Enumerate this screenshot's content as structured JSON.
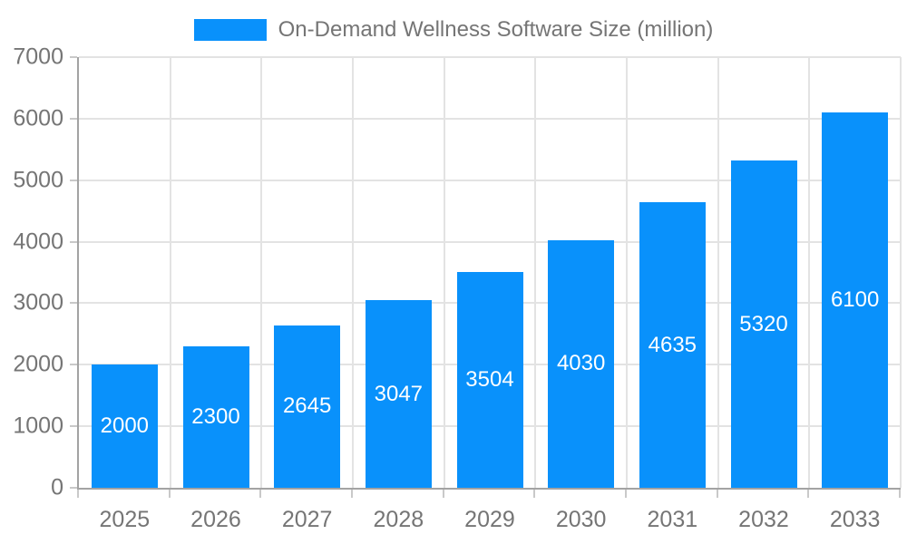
{
  "legend": {
    "label": "On-Demand Wellness Software Size (million)"
  },
  "chart_data": {
    "type": "bar",
    "title": "On-Demand Wellness Software Size (million)",
    "series_name": "On-Demand Wellness Software Size (million)",
    "categories": [
      "2025",
      "2026",
      "2027",
      "2028",
      "2029",
      "2030",
      "2031",
      "2032",
      "2033"
    ],
    "values": [
      2000,
      2300,
      2645,
      3047,
      3504,
      4030,
      4635,
      5320,
      6100
    ],
    "xlabel": "",
    "ylabel": "",
    "ylim": [
      0,
      7000
    ],
    "y_tick_step": 1000,
    "y_ticks": [
      0,
      1000,
      2000,
      3000,
      4000,
      5000,
      6000,
      7000
    ],
    "grid": true,
    "legend_position": "top",
    "bar_color": "#0991fb",
    "value_label_color": "#ffffff",
    "grid_color": "#e3e3e3",
    "axis_color": "#a3a3a3",
    "tick_text_color": "#757575"
  }
}
